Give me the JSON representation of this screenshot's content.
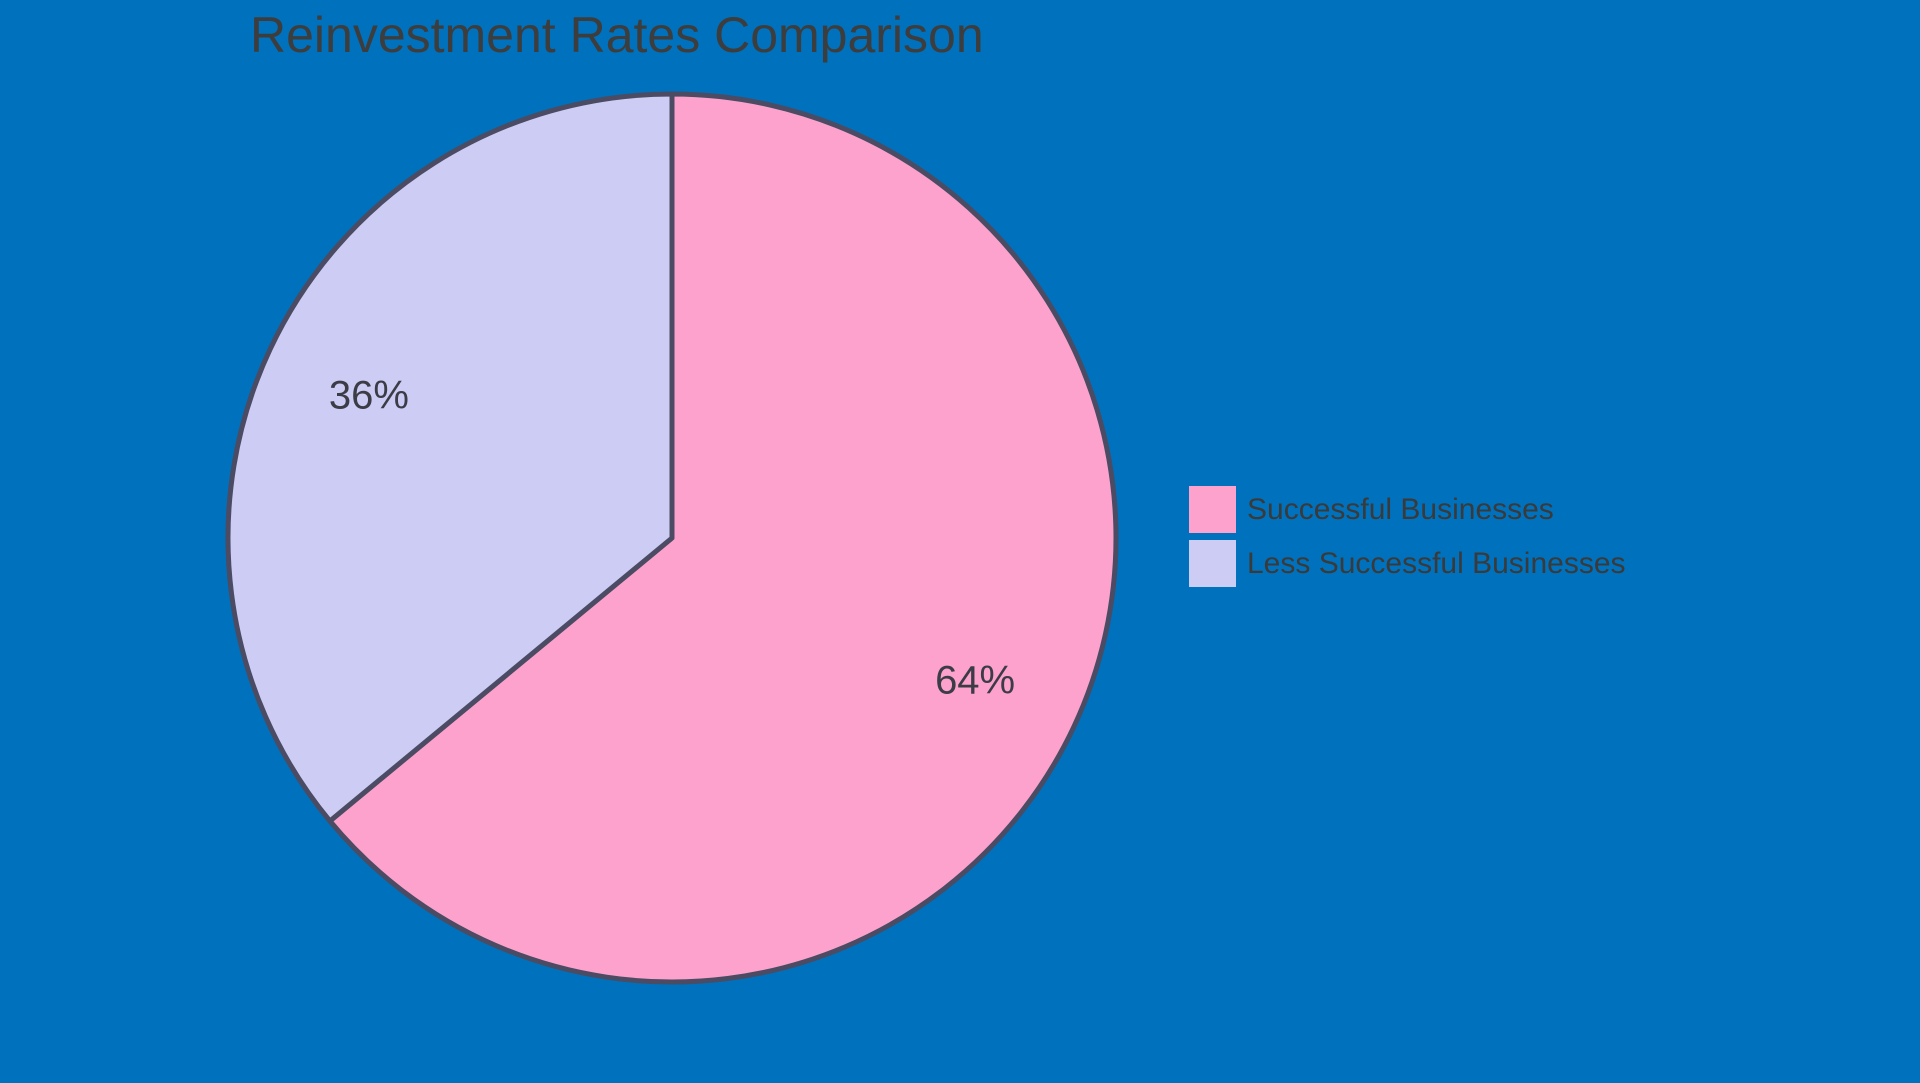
{
  "chart_data": {
    "type": "pie",
    "title": "Reinvestment Rates Comparison",
    "slices": [
      {
        "label": "Successful Businesses",
        "value": 64,
        "display": "64%",
        "color": "#FCA2CC"
      },
      {
        "label": "Less Successful Businesses",
        "value": 36,
        "display": "36%",
        "color": "#CCCCF5"
      }
    ],
    "start_angle_deg": 0,
    "direction": "clockwise",
    "legend_position": "right",
    "background_color": "#0071BC",
    "outline_color": "#4B4B63",
    "text_color": "#3D3D3D"
  }
}
